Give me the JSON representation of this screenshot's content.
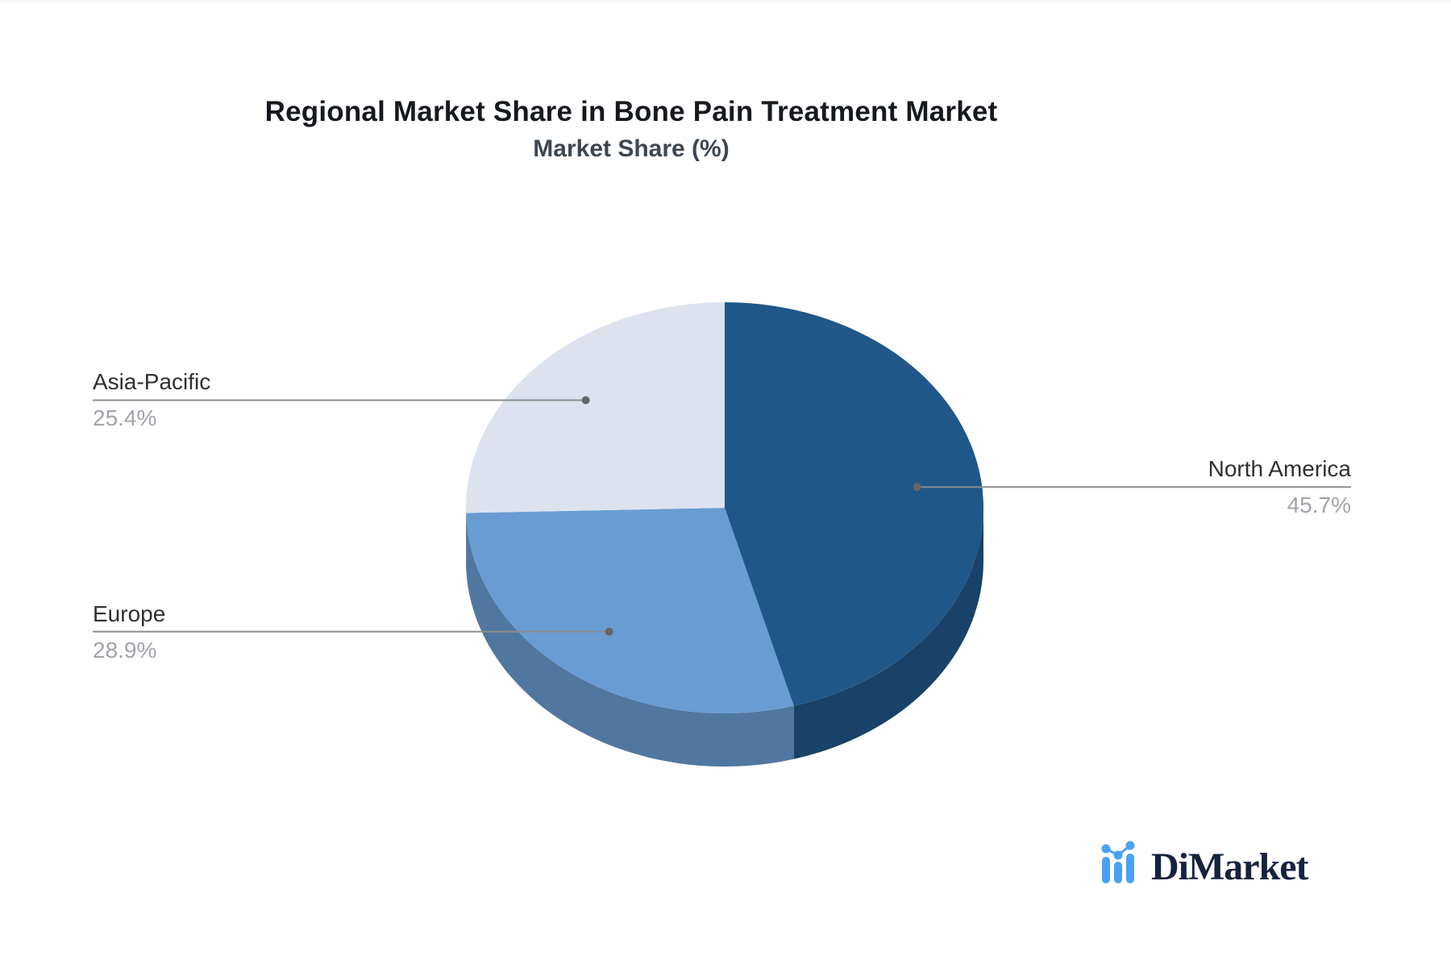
{
  "header": {
    "title": "Regional Market Share in Bone Pain Treatment Market",
    "subtitle": "Market Share (%)"
  },
  "chart_data": {
    "type": "pie",
    "title": "Regional Market Share in Bone Pain Treatment Market",
    "subtitle": "Market Share (%)",
    "unit": "%",
    "start_angle_deg": 90,
    "direction": "clockwise",
    "style": "3d-depth-pie",
    "slices": [
      {
        "label": "North America",
        "value": 45.7,
        "display": "45.7%",
        "color": "#1f5788"
      },
      {
        "label": "Europe",
        "value": 28.9,
        "display": "28.9%",
        "color": "#699cd2"
      },
      {
        "label": "Asia-Pacific",
        "value": 25.4,
        "display": "25.4%",
        "color": "#dce3ef"
      }
    ],
    "label_color": "#2e3033",
    "pct_color": "#a0a4a9",
    "leader_line_color": "#8c8c8c",
    "leader_dot_color": "#666666"
  },
  "branding": {
    "name": "DiMarket",
    "icon": "bar-line-chart-icon",
    "icon_color": "#4aa0f5",
    "text_color": "#16233e"
  }
}
